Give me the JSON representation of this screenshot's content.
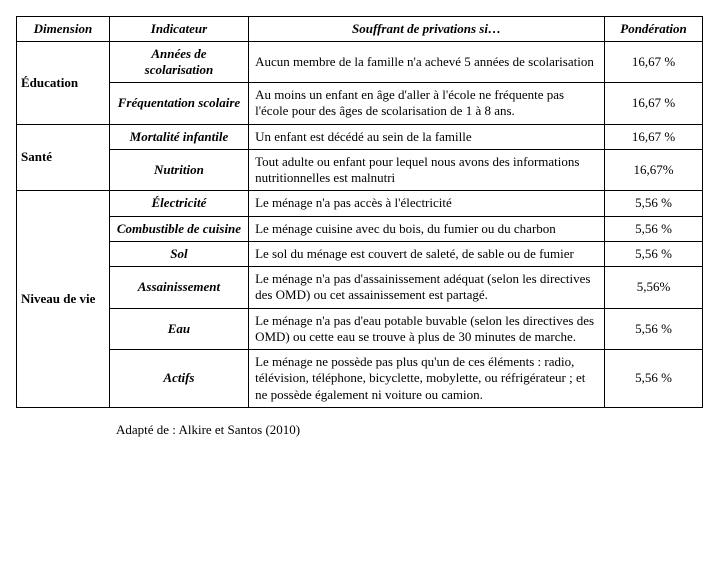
{
  "caption": "Adapté de : Alkire et Santos (2010)",
  "headers": {
    "dimension": "Dimension",
    "indicateur": "Indicateur",
    "description": "Souffrant de privations si…",
    "ponderation": "Pondération"
  },
  "groups": [
    {
      "dimension": "Éducation",
      "rows": [
        {
          "indicateur": "Années de scolarisation",
          "description": "Aucun membre de la famille n'a achevé 5 années de scolarisation",
          "ponderation": "16,67 %"
        },
        {
          "indicateur": "Fréquentation scolaire",
          "description": "Au moins un enfant en âge d'aller à l'école ne fréquente pas l'école pour des âges de scolarisation de 1 à 8 ans.",
          "ponderation": "16,67 %"
        }
      ]
    },
    {
      "dimension": "Santé",
      "rows": [
        {
          "indicateur": "Mortalité infantile",
          "description": "Un enfant est décédé au sein de la famille",
          "ponderation": "16,67 %"
        },
        {
          "indicateur": "Nutrition",
          "description": "Tout adulte ou enfant pour lequel nous avons des informations nutritionnelles est malnutri",
          "ponderation": "16,67%"
        }
      ]
    },
    {
      "dimension": "Niveau de vie",
      "rows": [
        {
          "indicateur": "Électricité",
          "description": "Le ménage n'a pas accès à l'électricité",
          "ponderation": "5,56 %"
        },
        {
          "indicateur": "Combustible de cuisine",
          "description": "Le ménage cuisine avec du bois, du fumier ou du charbon",
          "ponderation": "5,56 %"
        },
        {
          "indicateur": "Sol",
          "description": "Le sol du ménage est couvert de saleté, de sable ou de fumier",
          "ponderation": "5,56 %"
        },
        {
          "indicateur": "Assainissement",
          "description": "Le ménage n'a pas d'assainissement adéquat (selon les directives des OMD) ou cet assainissement est partagé.",
          "ponderation": "5,56%"
        },
        {
          "indicateur": "Eau",
          "description": "Le ménage n'a pas d'eau potable buvable (selon les directives des OMD) ou cette eau se trouve à plus de 30 minutes de marche.",
          "ponderation": "5,56 %"
        },
        {
          "indicateur": "Actifs",
          "description": "Le ménage ne possède pas plus qu'un de ces éléments : radio, télévision, téléphone, bicyclette, mobylette, ou réfrigérateur ; et ne possède également ni voiture ou camion.",
          "ponderation": "5,56 %"
        }
      ]
    }
  ]
}
